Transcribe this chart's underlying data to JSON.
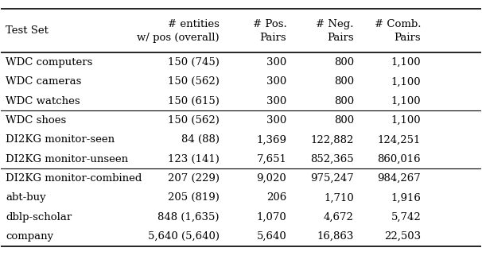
{
  "col_headers": [
    "Test Set",
    "# entities\nw/ pos (overall)",
    "# Pos.\nPairs",
    "# Neg.\nPairs",
    "# Comb.\nPairs"
  ],
  "rows": [
    [
      "WDC computers",
      "150 (745)",
      "300",
      "800",
      "1,100"
    ],
    [
      "WDC cameras",
      "150 (562)",
      "300",
      "800",
      "1,100"
    ],
    [
      "WDC watches",
      "150 (615)",
      "300",
      "800",
      "1,100"
    ],
    [
      "WDC shoes",
      "150 (562)",
      "300",
      "800",
      "1,100"
    ],
    [
      "DI2KG monitor-seen",
      "84 (88)",
      "1,369",
      "122,882",
      "124,251"
    ],
    [
      "DI2KG monitor-unseen",
      "123 (141)",
      "7,651",
      "852,365",
      "860,016"
    ],
    [
      "DI2KG monitor-combined",
      "207 (229)",
      "9,020",
      "975,247",
      "984,267"
    ],
    [
      "abt-buy",
      "205 (819)",
      "206",
      "1,710",
      "1,916"
    ],
    [
      "dblp-scholar",
      "848 (1,635)",
      "1,070",
      "4,672",
      "5,742"
    ],
    [
      "company",
      "5,640 (5,640)",
      "5,640",
      "16,863",
      "22,503"
    ]
  ],
  "group_separators_after": [
    3,
    6
  ],
  "bg_color": "#ffffff",
  "text_color": "#000000",
  "font_size": 9.5,
  "header_font_size": 9.5
}
